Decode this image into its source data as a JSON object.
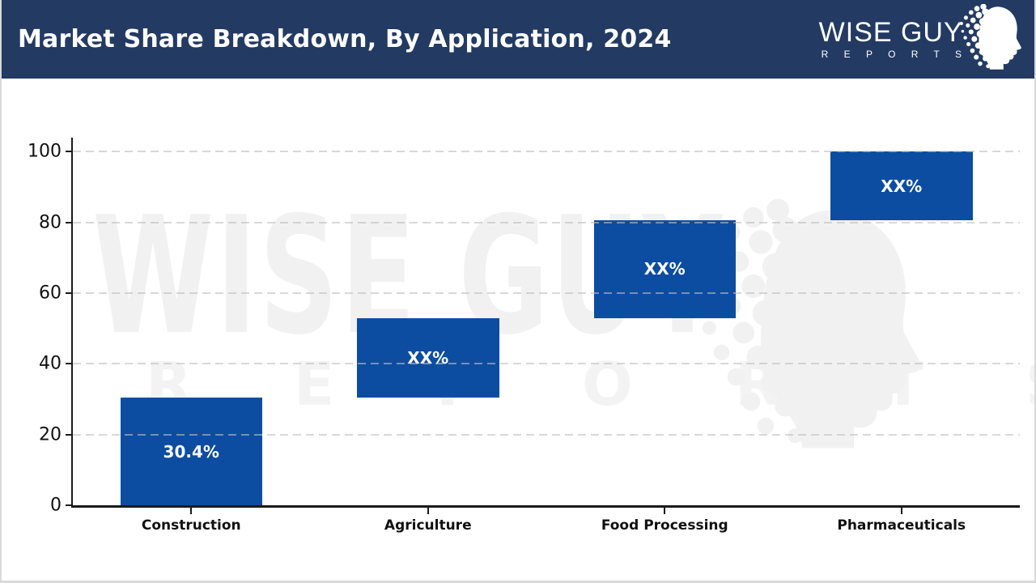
{
  "header": {
    "title": "Market Share Breakdown, By Application, 2024",
    "bg_color": "#233a63",
    "logo": {
      "wordmark": "WISE GUY",
      "subtitle": "R E P O R T S"
    }
  },
  "watermark": {
    "wordmark": "WISE GUY",
    "subtitle": "R E P O R T S"
  },
  "chart_data": {
    "type": "bar",
    "subtype": "waterfall",
    "title": "Market Share Breakdown, By Application, 2024",
    "categories": [
      "Construction",
      "Agriculture",
      "Food Processing",
      "Pharmaceuticals"
    ],
    "segments": [
      {
        "category": "Construction",
        "start": 0,
        "end": 30.4,
        "label": "30.4%"
      },
      {
        "category": "Agriculture",
        "start": 30.4,
        "end": 53,
        "label": "XX%"
      },
      {
        "category": "Food Processing",
        "start": 53,
        "end": 80.7,
        "label": "XX%"
      },
      {
        "category": "Pharmaceuticals",
        "start": 80.7,
        "end": 100,
        "label": "XX%"
      }
    ],
    "y_ticks": [
      0,
      20,
      40,
      60,
      80,
      100
    ],
    "ylim": [
      0,
      104
    ],
    "grid": "horizontal-dashed",
    "legend": "none",
    "bar_color": "#0c4da2",
    "bar_label_color": "#ffffff",
    "xlabel": "",
    "ylabel": ""
  }
}
